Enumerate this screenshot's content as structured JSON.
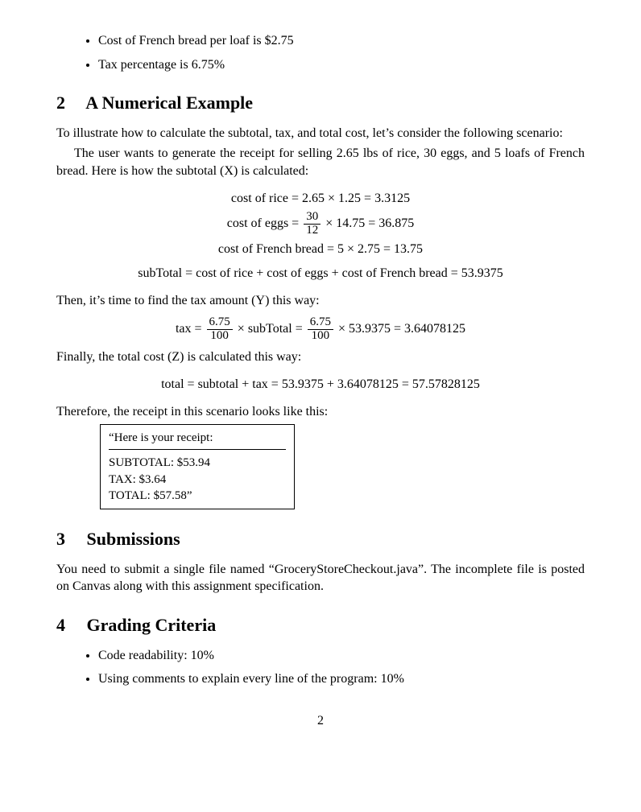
{
  "top_bullets": [
    "Cost of French bread per loaf is $2.75",
    "Tax percentage is 6.75%"
  ],
  "sec2": {
    "num": "2",
    "title": "A Numerical Example",
    "p1": "To illustrate how to calculate the subtotal, tax, and total cost, let’s consider the following scenario:",
    "p2": "The user wants to generate the receipt for selling 2.65 lbs of rice, 30 eggs, and 5 loafs of French bread. Here is how the subtotal (X) is calculated:",
    "eq_rice": "cost of rice = 2.65 × 1.25 = 3.3125",
    "eq_eggs_l": "cost of eggs = ",
    "eq_eggs_frac_n": "30",
    "eq_eggs_frac_d": "12",
    "eq_eggs_r": " × 14.75 = 36.875",
    "eq_bread": "cost of French bread = 5 × 2.75 = 13.75",
    "eq_subtotal": "subTotal = cost of rice + cost of eggs + cost of French bread = 53.9375",
    "p3": "Then, it’s time to find the tax amount (Y) this way:",
    "eq_tax_l": "tax = ",
    "eq_tax_f1n": "6.75",
    "eq_tax_f1d": "100",
    "eq_tax_mid": " × subTotal = ",
    "eq_tax_f2n": "6.75",
    "eq_tax_f2d": "100",
    "eq_tax_r": " × 53.9375 = 3.64078125",
    "p4": "Finally, the total cost (Z) is calculated this way:",
    "eq_total": "total = subtotal + tax = 53.9375 + 3.64078125 = 57.57828125",
    "p5": "Therefore, the receipt in this scenario looks like this:",
    "box_top": "“Here is your receipt:",
    "box_l1": "SUBTOTAL: $53.94",
    "box_l2": "TAX: $3.64",
    "box_l3": "TOTAL: $57.58”"
  },
  "sec3": {
    "num": "3",
    "title": "Submissions",
    "p1": "You need to submit a single file named “GroceryStoreCheckout.java”. The incomplete file is posted on Canvas along with this assignment specification."
  },
  "sec4": {
    "num": "4",
    "title": "Grading Criteria",
    "bullets": [
      "Code readability: 10%",
      "Using comments to explain every line of the program: 10%"
    ]
  },
  "pagenum": "2"
}
